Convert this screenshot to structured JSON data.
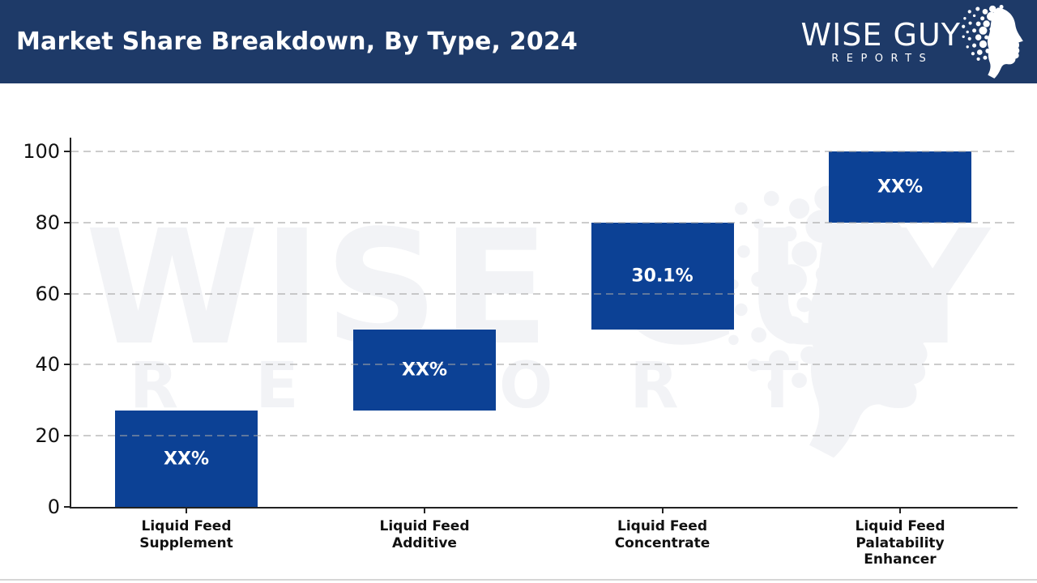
{
  "header": {
    "title": "Market Share Breakdown, By Type, 2024",
    "logo": {
      "line1": "WISE GUY",
      "line2": "REPORTS"
    },
    "bg_color": "#1e3a68"
  },
  "watermark": {
    "line1": "WISE GUY",
    "line2": "REPORTS"
  },
  "chart_data": {
    "type": "bar",
    "subtype": "floating-range-bars",
    "title": "Market Share Breakdown, By Type, 2024",
    "categories": [
      "Liquid Feed Supplement",
      "Liquid Feed Additive",
      "Liquid Feed Concentrate",
      "Liquid Feed Palatability Enhancer"
    ],
    "category_lines": [
      [
        "Liquid Feed",
        "Supplement"
      ],
      [
        "Liquid Feed",
        "Additive"
      ],
      [
        "Liquid Feed",
        "Concentrate"
      ],
      [
        "Liquid Feed",
        "Palatability",
        "Enhancer"
      ]
    ],
    "series": [
      {
        "name": "Market Share (%)",
        "ranges": [
          [
            0,
            27
          ],
          [
            27,
            50
          ],
          [
            49.9,
            80
          ],
          [
            80,
            100
          ]
        ]
      }
    ],
    "bar_labels": [
      "XX%",
      "XX%",
      "30.1%",
      "XX%"
    ],
    "yticks": [
      0,
      20,
      40,
      60,
      80,
      100
    ],
    "ylim": [
      0,
      100
    ],
    "grid": "dashed horizontal gridlines at y ticks, drawn over bars",
    "legend": "none",
    "xlabel": "",
    "ylabel": "",
    "bar_color": "#0c4195",
    "grid_color": "#d9d9d9",
    "axis_color": "#222222",
    "watermark_color": "#f2f3f6"
  }
}
